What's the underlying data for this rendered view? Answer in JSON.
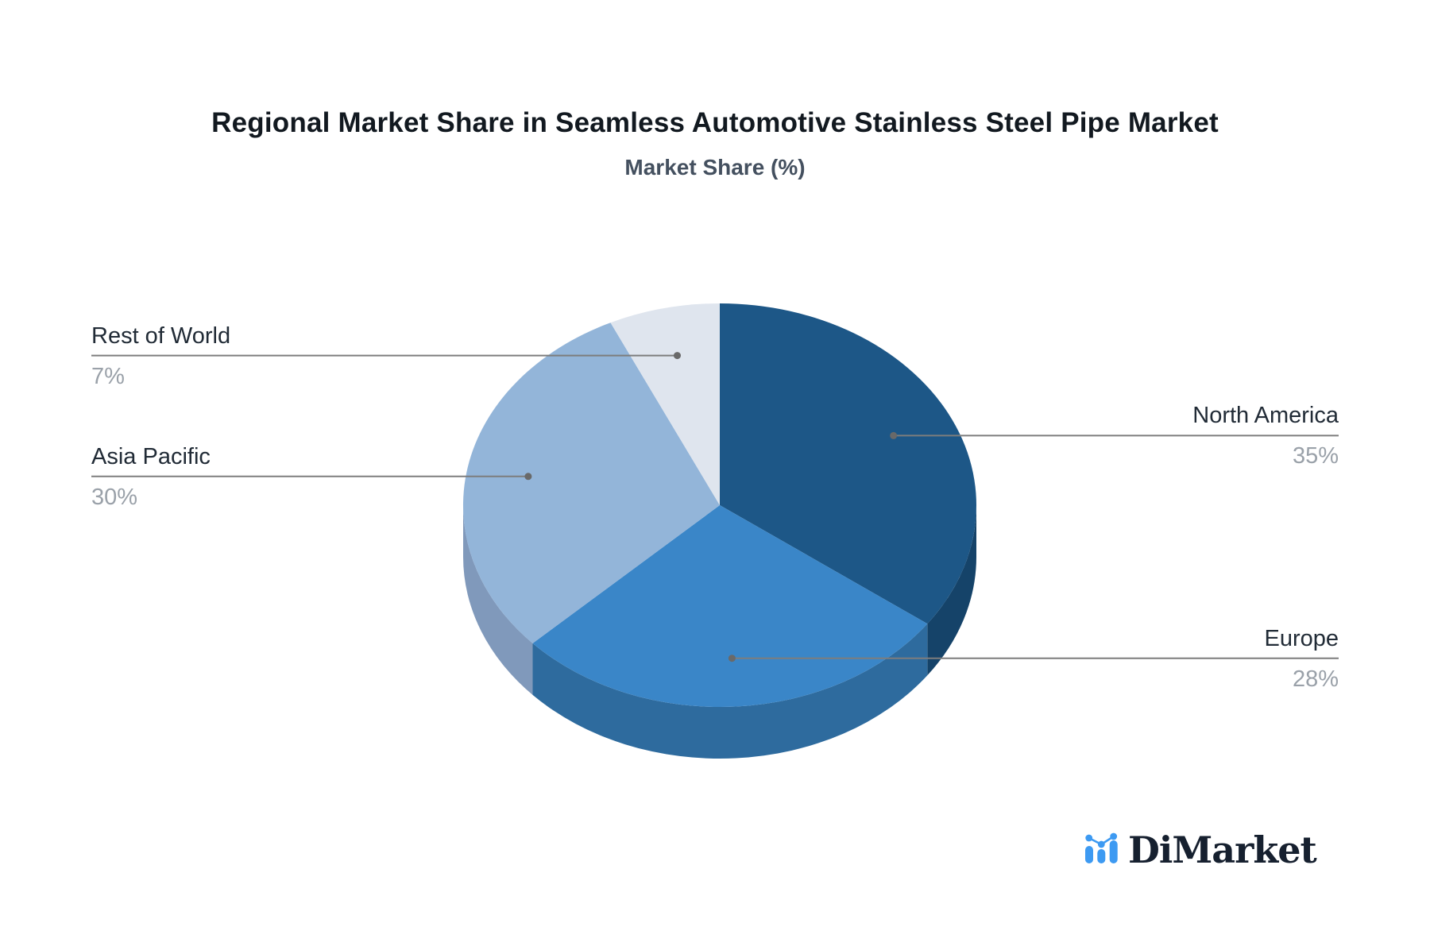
{
  "title": "Regional Market Share in Seamless Automotive Stainless Steel Pipe Market",
  "subtitle": "Market Share (%)",
  "watermark": {
    "text": "DiMarket"
  },
  "style": {
    "title_color": "#121920",
    "subtitle_color": "#44505f",
    "label_color": "#212b36",
    "percent_color": "#9aa1a9",
    "connector_color": "#7d7d7d",
    "connector_dot_color": "#696969",
    "logo_blue": "#3d9af2",
    "logo_text_color": "#16202f",
    "background": "#ffffff"
  },
  "chart_data": {
    "type": "pie",
    "style": "3d",
    "title": "Regional Market Share in Seamless Automotive Stainless Steel Pipe Market",
    "subtitle": "Market Share (%)",
    "unit": "%",
    "start_angle_deg": 0,
    "direction": "clockwise",
    "legend": "none",
    "slices": [
      {
        "label": "North America",
        "value": 35,
        "display": "35%",
        "color": "#1d5787",
        "side_color": "#154369",
        "label_side": "right"
      },
      {
        "label": "Europe",
        "value": 28,
        "display": "28%",
        "color": "#3a86c8",
        "side_color": "#2e6b9e",
        "label_side": "right"
      },
      {
        "label": "Asia Pacific",
        "value": 30,
        "display": "30%",
        "color": "#93b5d9",
        "side_color": "#8099bb",
        "label_side": "left"
      },
      {
        "label": "Rest of World",
        "value": 7,
        "display": "7%",
        "color": "#dfe5ee",
        "side_color": "#c3ccd9",
        "label_side": "left"
      }
    ]
  }
}
